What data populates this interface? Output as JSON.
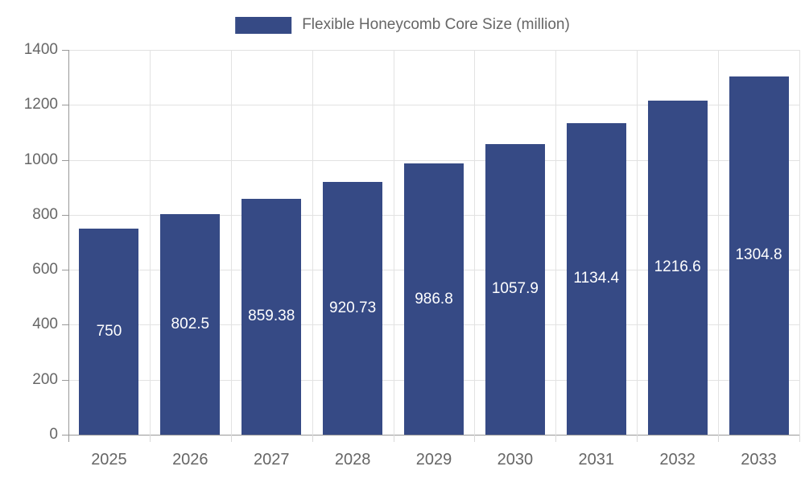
{
  "chart_data": {
    "type": "bar",
    "title": "",
    "legend": "Flexible Honeycomb Core Size (million)",
    "categories": [
      "2025",
      "2026",
      "2027",
      "2028",
      "2029",
      "2030",
      "2031",
      "2032",
      "2033"
    ],
    "values": [
      750,
      802.5,
      859.38,
      920.73,
      986.8,
      1057.9,
      1134.4,
      1216.6,
      1304.8
    ],
    "value_labels": [
      "750",
      "802.5",
      "859.38",
      "920.73",
      "986.8",
      "1057.9",
      "1134.4",
      "1216.6",
      "1304.8"
    ],
    "xlabel": "",
    "ylabel": "",
    "ylim": [
      0,
      1400
    ],
    "y_ticks": [
      0,
      200,
      400,
      600,
      800,
      1000,
      1200,
      1400
    ],
    "grid": true,
    "legend_position": "top-center",
    "colors": {
      "bar": "#364A85",
      "bar_value_label": "#ffffff",
      "axis_text": "#666666",
      "legend_text": "#666666",
      "grid_line": "#e2e2e2",
      "axis_line": "#999999",
      "boundary_tick": "#d9d9d9",
      "background": "#ffffff"
    }
  }
}
